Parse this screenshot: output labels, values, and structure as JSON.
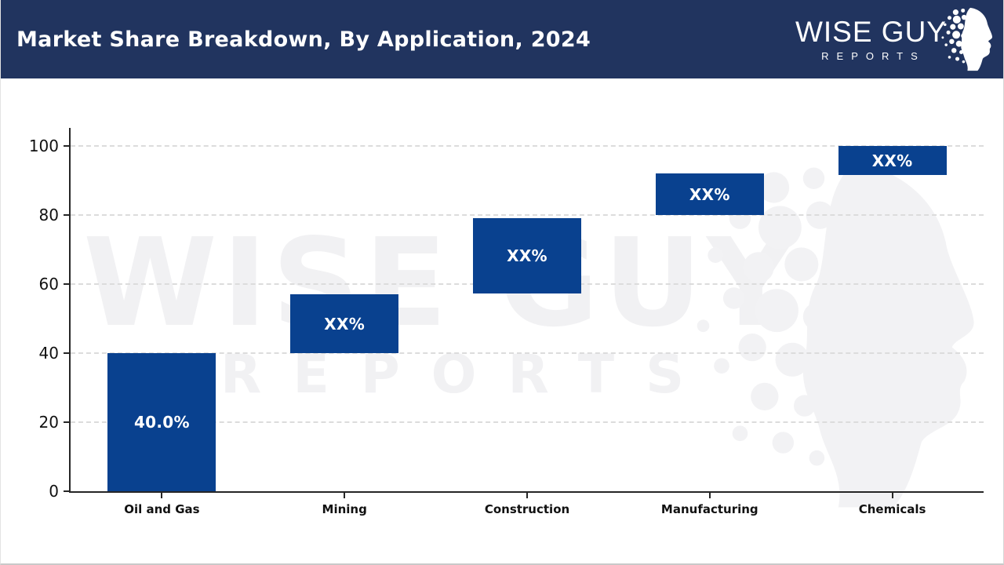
{
  "header": {
    "title": "Market Share Breakdown, By Application, 2024",
    "logo": {
      "line1": "WISE GUY",
      "line2": "REPORTS"
    }
  },
  "watermark": {
    "line1": "WISE GUY",
    "line2": "REPORTS"
  },
  "colors": {
    "header_bg": "#21345F",
    "bar_fill": "#09418F",
    "bar_label_text": "#ffffff",
    "grid_line": "#dcdcdc",
    "axis_line": "#262626",
    "tick_label": "#111111",
    "watermark": "#f1f1f3"
  },
  "chart_data": {
    "type": "bar",
    "subtype": "waterfall",
    "title": "Market Share Breakdown, By Application, 2024",
    "xlabel": "",
    "ylabel": "",
    "categories": [
      "Oil and Gas",
      "Mining",
      "Construction",
      "Manufacturing",
      "Chemicals"
    ],
    "segments": [
      {
        "category": "Oil and Gas",
        "start": 0,
        "end": 40,
        "label": "40.0%"
      },
      {
        "category": "Mining",
        "start": 40,
        "end": 57,
        "label": "XX%"
      },
      {
        "category": "Construction",
        "start": 57.3,
        "end": 79.1,
        "label": "XX%"
      },
      {
        "category": "Manufacturing",
        "start": 80,
        "end": 92,
        "label": "XX%"
      },
      {
        "category": "Chemicals",
        "start": 91.5,
        "end": 100,
        "label": "XX%"
      }
    ],
    "yticks": [
      0,
      20,
      40,
      60,
      80,
      100
    ],
    "ylim": [
      0,
      105
    ],
    "grid": "horizontal-dashed",
    "legend": "none"
  }
}
